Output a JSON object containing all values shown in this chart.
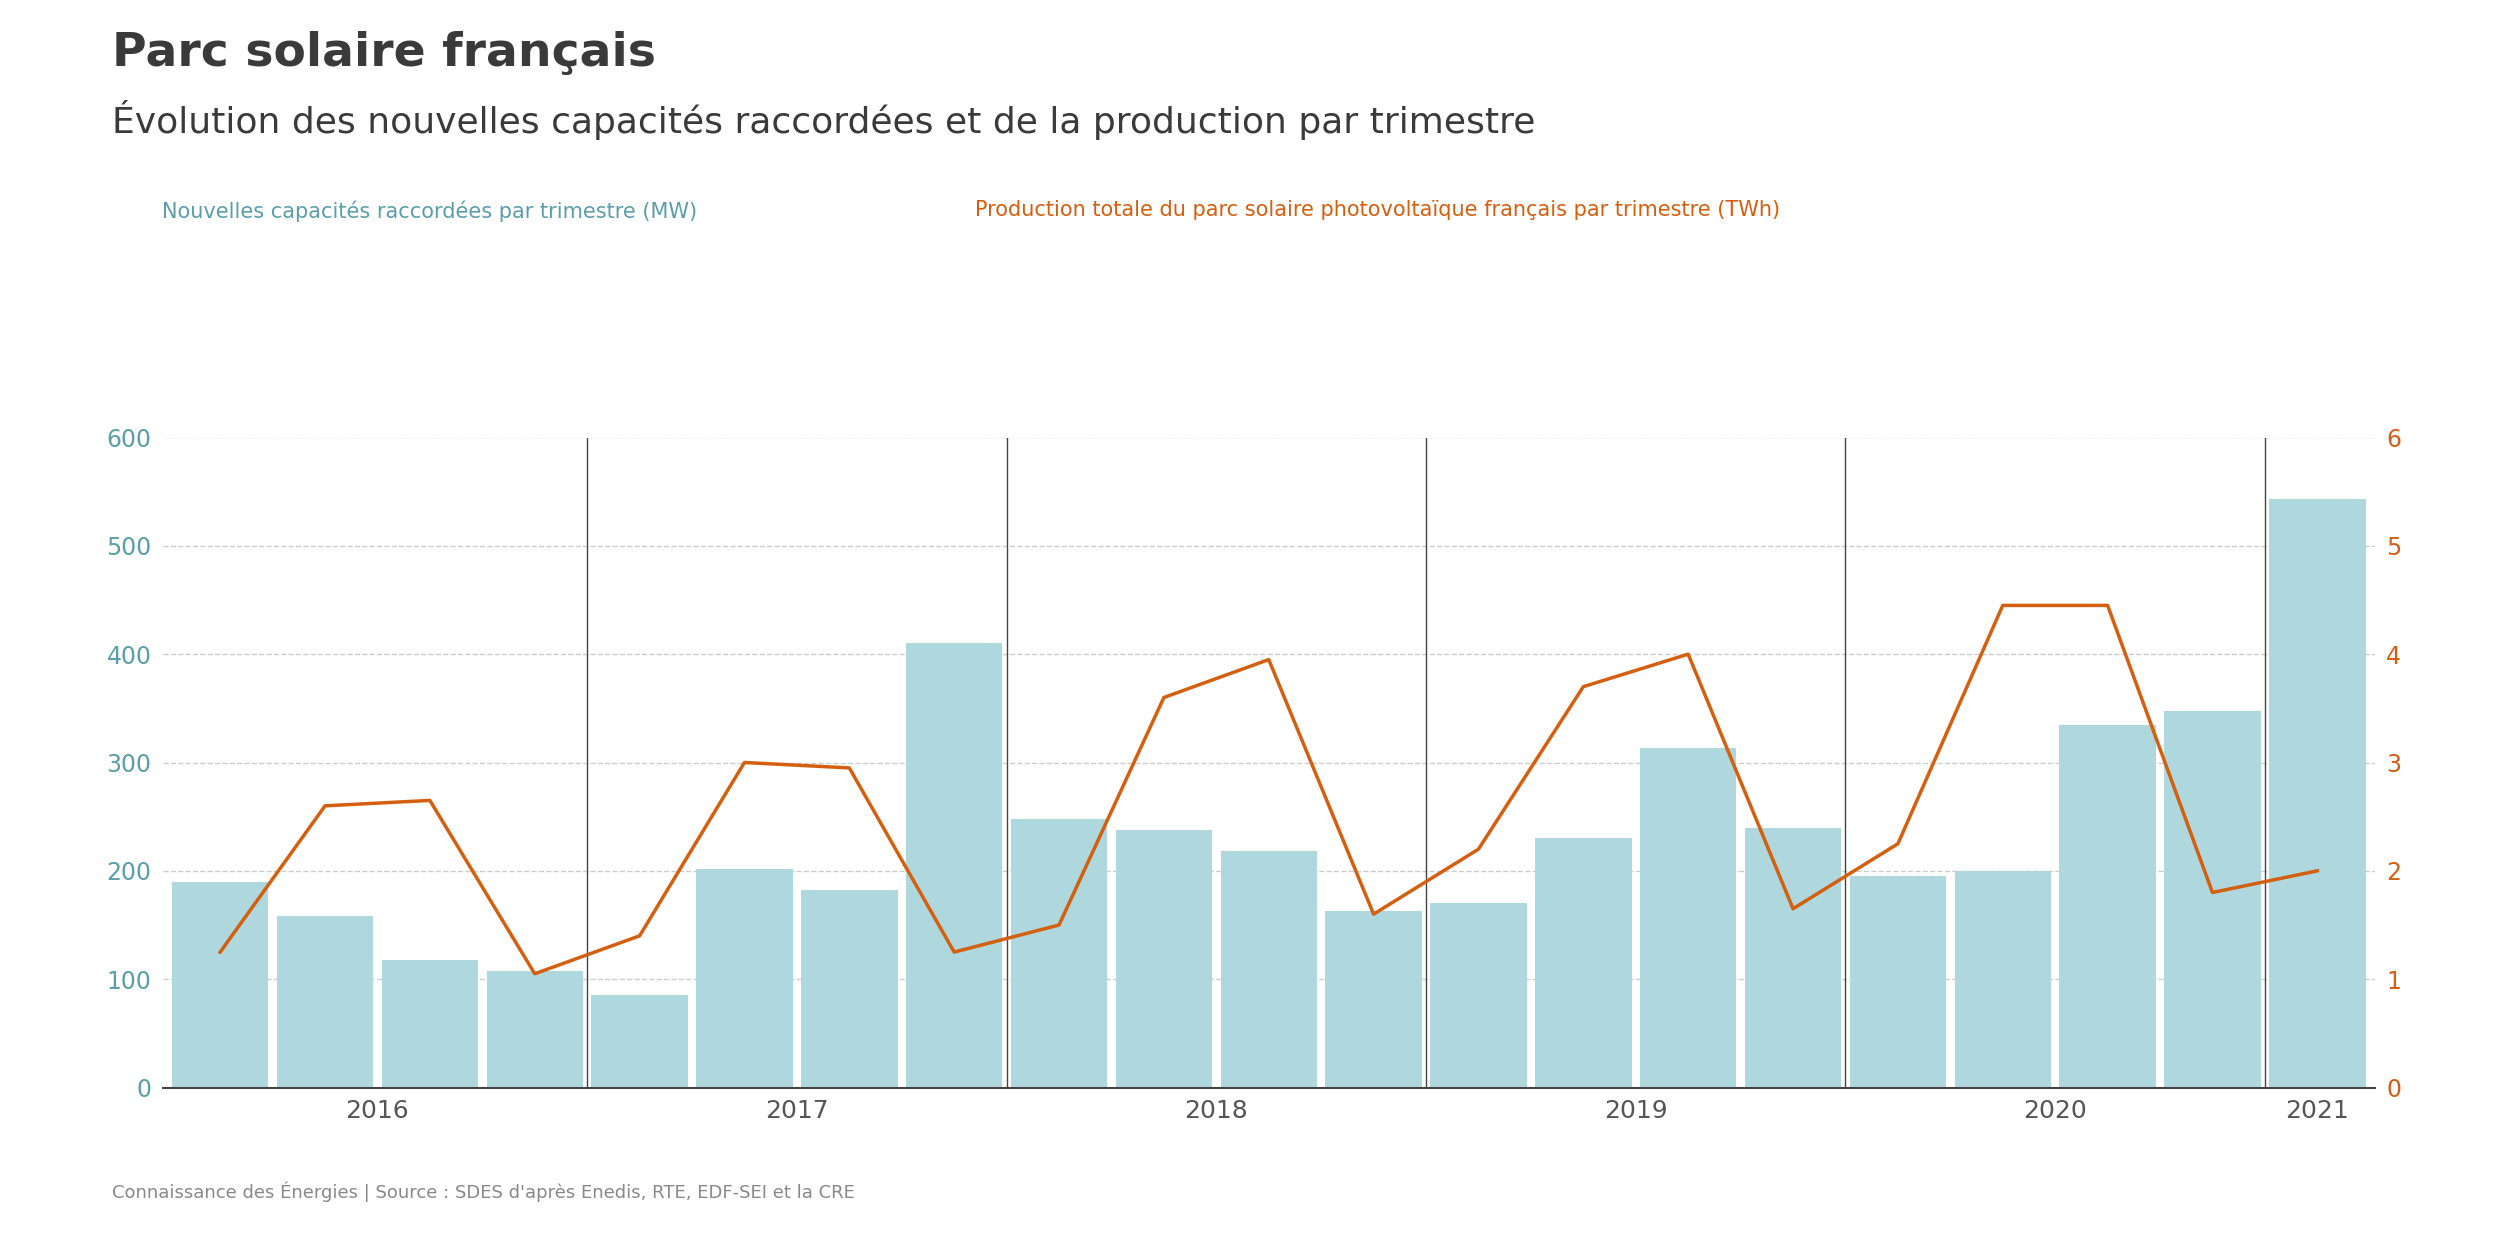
{
  "title_bold": "Parc solaire français",
  "title_sub": "Évolution des nouvelles capacités raccordées et de la production par trimestre",
  "legend_left": "Nouvelles capacités raccordées par trimestre (MW)",
  "legend_right": "Production totale du parc solaire photovoltaïque français par trimestre (TWh)",
  "source": "Connaissance des Énergies | Source : SDES d'après Enedis, RTE, EDF-SEI et la CRE",
  "bar_color": "#aed8de",
  "line_color": "#d45f0f",
  "title_color": "#3a3a3a",
  "legend_left_color": "#5a9fa8",
  "legend_right_color": "#d45f0f",
  "source_color": "#888888",
  "ytick_left_color": "#5a9fa8",
  "ytick_right_color": "#d45f0f",
  "xtick_color": "#555555",
  "grid_color": "#cccccc",
  "divider_color": "#444444",
  "bottom_line_color": "#444444",
  "bar_values": [
    190,
    158,
    118,
    108,
    85,
    202,
    182,
    410,
    248,
    238,
    218,
    163,
    170,
    230,
    313,
    240,
    195,
    200,
    335,
    348,
    543
  ],
  "line_values": [
    1.25,
    2.6,
    2.65,
    1.05,
    1.4,
    3.0,
    2.95,
    1.25,
    1.5,
    3.6,
    3.95,
    1.6,
    2.2,
    3.7,
    4.0,
    1.65,
    2.25,
    4.45,
    4.45,
    1.8,
    2.0
  ],
  "ylim_left": [
    0,
    600
  ],
  "ylim_right": [
    0,
    6
  ],
  "yticks_left": [
    0,
    100,
    200,
    300,
    400,
    500,
    600
  ],
  "yticks_right": [
    0,
    1,
    2,
    3,
    4,
    5,
    6
  ],
  "n_bars": 21,
  "groups": [
    {
      "label": "2016",
      "start": 0,
      "end": 3
    },
    {
      "label": "2017",
      "start": 4,
      "end": 7
    },
    {
      "label": "2018",
      "start": 8,
      "end": 11
    },
    {
      "label": "2019",
      "start": 12,
      "end": 15
    },
    {
      "label": "2020",
      "start": 16,
      "end": 19
    },
    {
      "label": "2021",
      "start": 20,
      "end": 20
    }
  ],
  "divider_positions": [
    3.5,
    7.5,
    11.5,
    15.5,
    19.5
  ],
  "background_color": "#ffffff"
}
